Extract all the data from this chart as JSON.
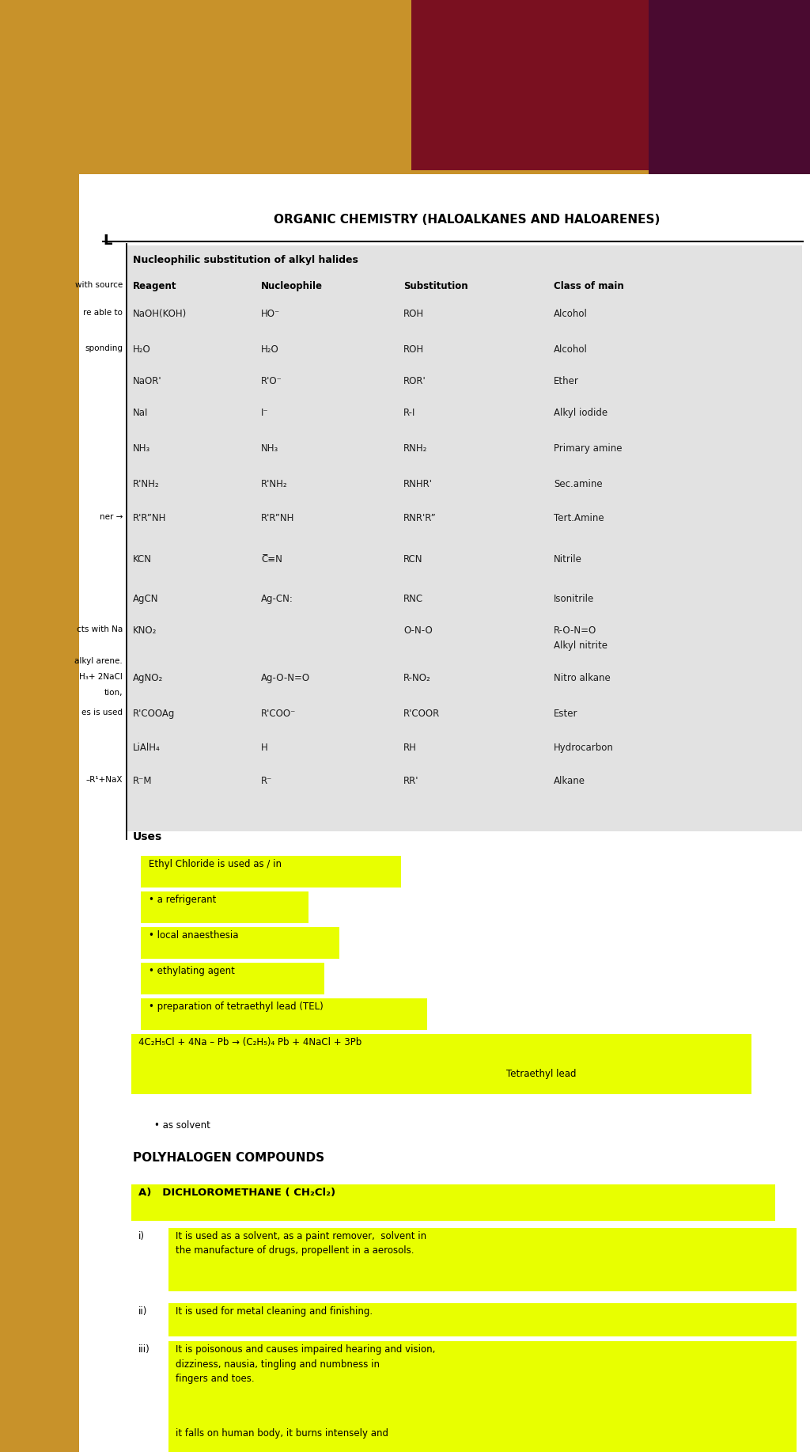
{
  "title": "ORGANIC CHEMISTRY (HALOALKANES AND HALOARENES)",
  "section_title": "Nucleophilic substitution of alkyl halides",
  "col_headers": [
    "Reagent",
    "Nucleophile",
    "Substitution",
    "Class of main"
  ],
  "table_rows": [
    [
      "NaOH(KOH)",
      "HO⁻",
      "ROH",
      "Alcohol"
    ],
    [
      "H₂O",
      "H₂O",
      "ROH",
      "Alcohol"
    ],
    [
      "NaOR'",
      "R'O⁻",
      "ROR'",
      "Ether"
    ],
    [
      "NaI",
      "I⁻",
      "R-I",
      "Alkyl iodide"
    ],
    [
      "NH₃",
      "NH₃",
      "RNH₂",
      "Primary amine"
    ],
    [
      "R'NH₂",
      "R'NH₂",
      "RNHR'",
      "Sec.amine"
    ],
    [
      "R'R”NH",
      "R'R”NH",
      "RNR'R”",
      "Tert.Amine"
    ],
    [
      "KCN",
      "C̅≡N",
      "RCN",
      "Nitrile"
    ],
    [
      "AgCN",
      "Ag-CN:",
      "RNC",
      "Isonitrile"
    ],
    [
      "KNO₂",
      "",
      "O-N-O",
      "R-O-N=O\nAlkyl nitrite"
    ],
    [
      "AgNO₂",
      "Ag-O-N=O",
      "R-NO₂",
      "Nitro alkane"
    ],
    [
      "R'COOAg",
      "R'COO⁻",
      "R'COOR",
      "Ester"
    ],
    [
      "LiAlH₄",
      "H",
      "RH",
      "Hydrocarbon"
    ],
    [
      "R⁻M",
      "R⁻",
      "RR'",
      "Alkane"
    ]
  ],
  "highlight_color": "#e8ff00",
  "text_color": "#1c1c1c",
  "wood_bg": "#c8922a",
  "red_bg": "#7a1020",
  "page_bg": "#f0f0f0",
  "white_page": "#ffffff"
}
